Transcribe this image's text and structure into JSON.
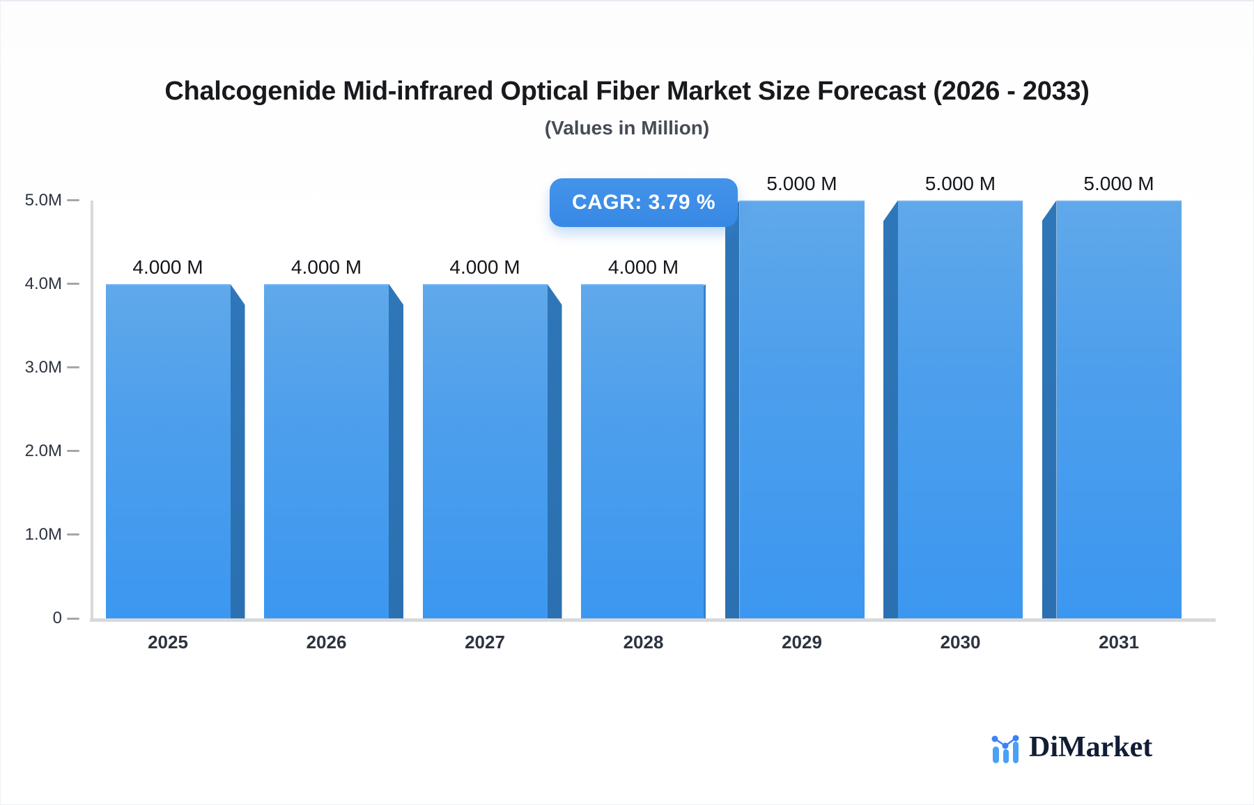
{
  "header": {
    "title": "Chalcogenide Mid-infrared Optical Fiber Market Size Forecast (2026 - 2033)",
    "subtitle": "(Values in Million)"
  },
  "cagr_badge": {
    "label": "CAGR: 3.79 %"
  },
  "brand": {
    "name": "DiMarket"
  },
  "chart_data": {
    "type": "bar",
    "title": "Chalcogenide Mid-infrared Optical Fiber Market Size Forecast (2026 - 2033)",
    "subtitle": "(Values in Million)",
    "unit": "M",
    "categories": [
      "2025",
      "2026",
      "2027",
      "2028",
      "2029",
      "2030",
      "2031"
    ],
    "values_millions": [
      4,
      4,
      4,
      4,
      5,
      5,
      5
    ],
    "value_labels": [
      "4.000 M",
      "4.000 M",
      "4.000 M",
      "4.000 M",
      "5.000 M",
      "5.000 M",
      "5.000 M"
    ],
    "cagr_percent": 3.79,
    "y_axis": {
      "max_millions": 5,
      "ticks": [
        {
          "label": "0",
          "value_millions": 0
        },
        {
          "label": "1.0M",
          "value_millions": 1
        },
        {
          "label": "2.0M",
          "value_millions": 2
        },
        {
          "label": "3.0M",
          "value_millions": 3
        },
        {
          "label": "4.0M",
          "value_millions": 4
        },
        {
          "label": "5.0M",
          "value_millions": 5
        }
      ]
    },
    "grid": false,
    "legend": null,
    "colors": {
      "bar_face_top": "#60a8ea",
      "bar_face_bottom": "#3c97f0",
      "bar_side_3d": "#2c73b5",
      "badge_blue": "#3b8de8",
      "axis_line": "#d7d9dc",
      "tick": "#a3a7ad",
      "label_dark": "#13161b",
      "axis_label": "#2d3340",
      "logo_blue": "#4aa0f5",
      "logo_navy": "#121d35"
    }
  }
}
